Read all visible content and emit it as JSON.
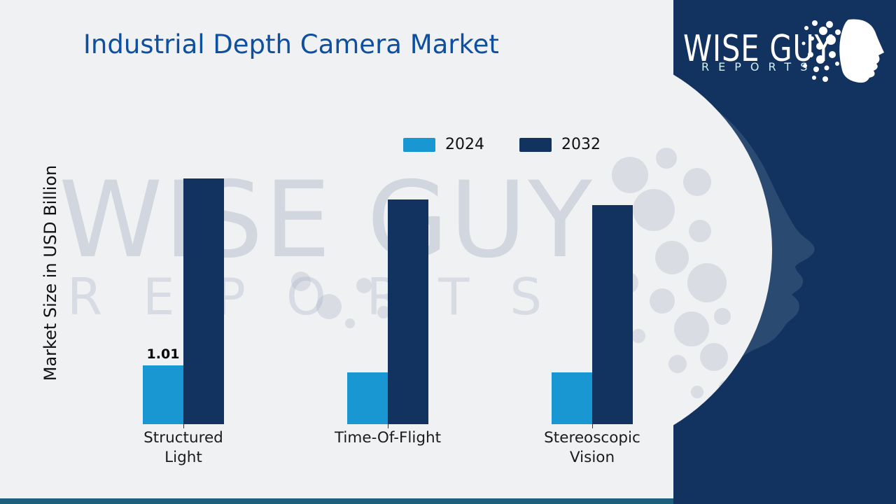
{
  "page": {
    "background": "#f0f1f2"
  },
  "header": {
    "title": "Industrial Depth Camera Market",
    "title_color": "#0d4fa0"
  },
  "watermark": {
    "line1": "WISE GUY",
    "line2": "REPORTS"
  },
  "brand": {
    "logo_line1": "WISE GUY",
    "logo_line2": "REPORTS",
    "panel_color": "#12325f",
    "silhouette_color": "#2b4a72",
    "bottom_bar_color": "#1d5f7c"
  },
  "legend": [
    {
      "label": "2024",
      "color": "#1897d3"
    },
    {
      "label": "2032",
      "color": "#12325f"
    }
  ],
  "chart_data": {
    "type": "bar",
    "title": "Industrial Depth Camera Market",
    "xlabel": "",
    "ylabel": "Market Size in USD Billion",
    "categories": [
      "Structured Light",
      "Time-Of-Flight",
      "Stereoscopic Vision"
    ],
    "series": [
      {
        "name": "2024",
        "color": "#1897d3",
        "values": [
          1.01,
          0.89,
          0.89
        ],
        "data_labels": [
          "1.01",
          "",
          ""
        ]
      },
      {
        "name": "2032",
        "color": "#12325f",
        "values": [
          4.22,
          3.86,
          3.76
        ],
        "data_labels": [
          "",
          "",
          ""
        ]
      }
    ],
    "ylim": [
      0,
      4.5
    ],
    "grid": false,
    "axis_lines": false,
    "legend_position": "top-center"
  }
}
